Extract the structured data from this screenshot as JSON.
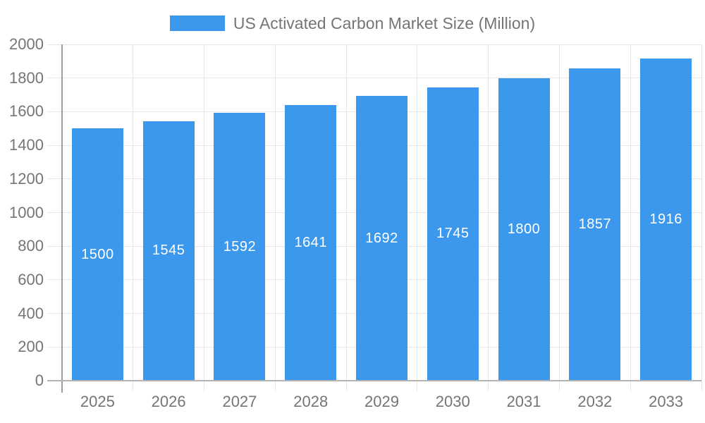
{
  "chart_data": {
    "type": "bar",
    "title": "US Activated Carbon Market Size (Million)",
    "categories": [
      "2025",
      "2026",
      "2027",
      "2028",
      "2029",
      "2030",
      "2031",
      "2032",
      "2033"
    ],
    "values": [
      1500,
      1545,
      1592,
      1641,
      1692,
      1745,
      1800,
      1857,
      1916
    ],
    "xlabel": "",
    "ylabel": "",
    "ylim": [
      0,
      2000
    ],
    "ytick_step": 200,
    "ytick_labels": [
      "0",
      "200",
      "400",
      "600",
      "800",
      "1000",
      "1200",
      "1400",
      "1600",
      "1800",
      "2000"
    ],
    "grid": true,
    "legend_position": "top-center",
    "bar_label_position": "centered-inside-bar",
    "colors": {
      "bar": "#3B98EC",
      "bar_label": "#FFFFFF",
      "axis_text": "#757575",
      "gridline": "#E6E6E6",
      "axis_line": "#9E9E9E",
      "baseline": "#B3B3B3",
      "background": "#FFFFFF"
    }
  }
}
